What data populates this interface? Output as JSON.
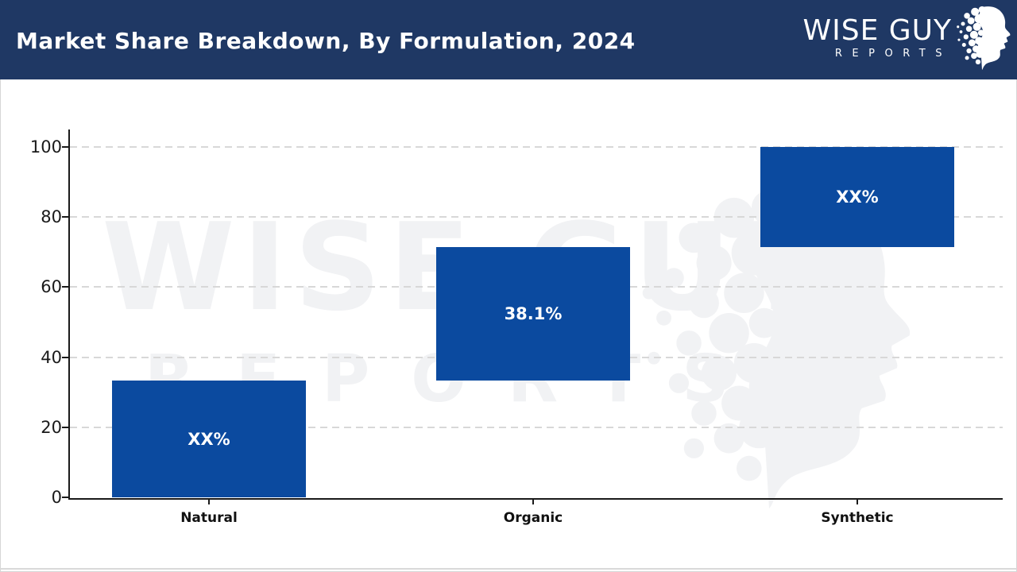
{
  "header": {
    "title": "Market Share Breakdown, By Formulation, 2024"
  },
  "logo": {
    "brand": "WISE GUY",
    "sub": "REPORTS"
  },
  "watermark": {
    "line1": "WISE GUY",
    "line2": "REPORTS"
  },
  "chart_data": {
    "type": "waterfall",
    "title": "Market Share Breakdown, By Formulation, 2024",
    "categories": [
      "Natural",
      "Organic",
      "Synthetic"
    ],
    "segments": [
      {
        "category": "Natural",
        "start": 0,
        "end": 33.3,
        "value_label": "XX%"
      },
      {
        "category": "Organic",
        "start": 33.3,
        "end": 71.4,
        "value_label": "38.1%"
      },
      {
        "category": "Synthetic",
        "start": 71.4,
        "end": 100,
        "value_label": "XX%"
      }
    ],
    "ylim": [
      0,
      100
    ],
    "yticks": [
      0,
      20,
      40,
      60,
      80,
      100
    ],
    "grid": "dashed-horizontal",
    "legend": "none",
    "colors": {
      "bar": "#0b4a9f",
      "header_bg": "#1f3864",
      "grid": "#d8d8d8",
      "axis": "#1a1a1a",
      "watermark": "#f1f2f4",
      "bar_label_text": "#ffffff"
    }
  }
}
